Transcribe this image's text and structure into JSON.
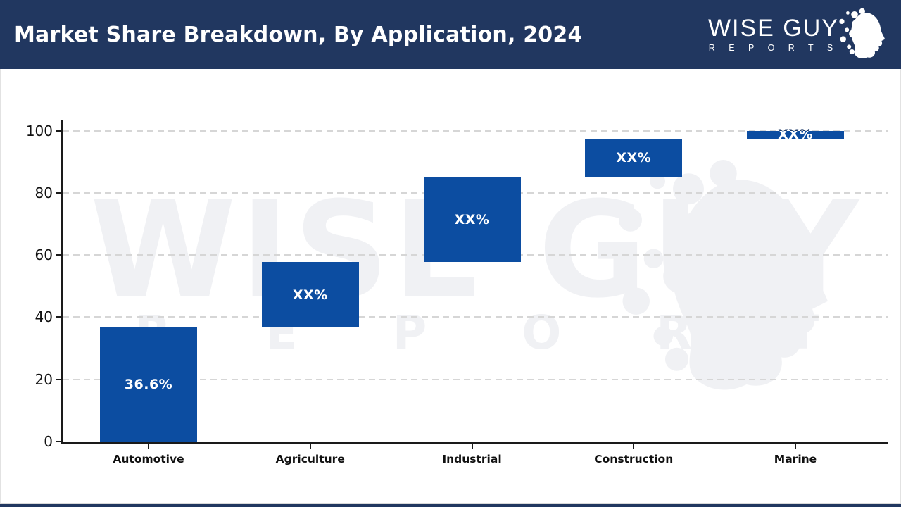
{
  "header": {
    "title": "Market Share Breakdown, By Application, 2024",
    "logo": {
      "name": "WISE GUY",
      "sub": "R E P O R T S"
    }
  },
  "watermark": {
    "name": "WISE GUY",
    "sub": "R E P O R T S"
  },
  "colors": {
    "header_bg": "#213760",
    "footer_bg": "#213760",
    "bar_fill": "#0C4DA1",
    "bar_label": "#ffffff",
    "peek_label": "#1c3968",
    "grid_line": "#d6d6d6",
    "axis_line": "#1a1a1a",
    "tick_label": "#111111",
    "watermark": "#f0f1f4"
  },
  "chart_data": {
    "type": "bar",
    "variant": "stacked-waterfall",
    "title": "Market Share Breakdown, By Application, 2024",
    "categories": [
      "Automotive",
      "Agriculture",
      "Industrial",
      "Construction",
      "Marine"
    ],
    "segments": [
      {
        "category": "Automotive",
        "start": 0,
        "end": 36.6,
        "label": "36.6%"
      },
      {
        "category": "Agriculture",
        "start": 36.6,
        "end": 57.7,
        "label": "XX%"
      },
      {
        "category": "Industrial",
        "start": 57.7,
        "end": 85.2,
        "label": "XX%"
      },
      {
        "category": "Construction",
        "start": 85.2,
        "end": 97.5,
        "label": "XX%"
      },
      {
        "category": "Marine",
        "start": 97.5,
        "end": 100,
        "label": "XX%"
      }
    ],
    "ylim": [
      0,
      100
    ],
    "yticks": [
      0,
      20,
      40,
      60,
      80,
      100
    ],
    "grid": "horizontal-dashed",
    "legend": "none"
  }
}
